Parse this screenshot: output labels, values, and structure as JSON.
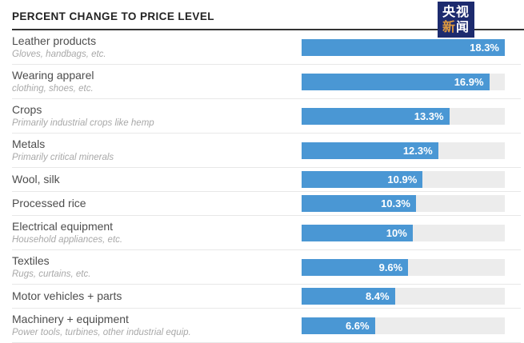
{
  "title": "PERCENT CHANGE TO PRICE LEVEL",
  "logo": {
    "name": "CCTV News (央视新闻) watermark",
    "line1": "央视",
    "line2_accent": "新",
    "line2_rest": "闻",
    "bg_color": "#1d2b6e",
    "accent_color": "#e09a3e"
  },
  "colors": {
    "bar": "#4a97d4",
    "track": "#ececec",
    "separator": "#e8e8e8",
    "header_rule": "#333333",
    "label": "#4d4d4d",
    "subtitle": "#a8a8a8"
  },
  "chart_data": {
    "type": "bar",
    "orientation": "horizontal",
    "title": "PERCENT CHANGE TO PRICE LEVEL",
    "categories": [
      "Leather products",
      "Wearing apparel",
      "Crops",
      "Metals",
      "Wool, silk",
      "Processed rice",
      "Electrical equipment",
      "Textiles",
      "Motor vehicles + parts",
      "Machinery + equipment"
    ],
    "subtitles": [
      "Gloves, handbags, etc.",
      "clothing, shoes, etc.",
      "Primarily industrial crops like hemp",
      "Primarily critical minerals",
      "",
      "",
      "Household appliances, etc.",
      "Rugs, curtains, etc.",
      "",
      "Power tools, turbines, other industrial equip."
    ],
    "values": [
      18.3,
      16.9,
      13.3,
      12.3,
      10.9,
      10.3,
      10,
      9.6,
      8.4,
      6.6
    ],
    "value_labels": [
      "18.3%",
      "16.9%",
      "13.3%",
      "12.3%",
      "10.9%",
      "10.3%",
      "10%",
      "9.6%",
      "8.4%",
      "6.6%"
    ],
    "xlabel": "",
    "ylabel": "",
    "xlim": [
      0,
      18.3
    ],
    "grid": false,
    "legend": false
  },
  "rows": [
    {
      "label": "Leather products",
      "subtitle": "Gloves, handbags, etc.",
      "value": 18.3,
      "display": "18.3%"
    },
    {
      "label": "Wearing apparel",
      "subtitle": "clothing, shoes, etc.",
      "value": 16.9,
      "display": "16.9%"
    },
    {
      "label": "Crops",
      "subtitle": "Primarily industrial crops like hemp",
      "value": 13.3,
      "display": "13.3%"
    },
    {
      "label": "Metals",
      "subtitle": "Primarily critical minerals",
      "value": 12.3,
      "display": "12.3%"
    },
    {
      "label": "Wool, silk",
      "value": 10.9,
      "display": "10.9%"
    },
    {
      "label": "Processed rice",
      "value": 10.3,
      "display": "10.3%"
    },
    {
      "label": "Electrical equipment",
      "subtitle": "Household appliances, etc.",
      "value": 10,
      "display": "10%"
    },
    {
      "label": "Textiles",
      "subtitle": "Rugs, curtains, etc.",
      "value": 9.6,
      "display": "9.6%"
    },
    {
      "label": "Motor vehicles + parts",
      "value": 8.4,
      "display": "8.4%"
    },
    {
      "label": "Machinery + equipment",
      "subtitle": "Power tools, turbines, other industrial equip.",
      "value": 6.6,
      "display": "6.6%"
    }
  ]
}
